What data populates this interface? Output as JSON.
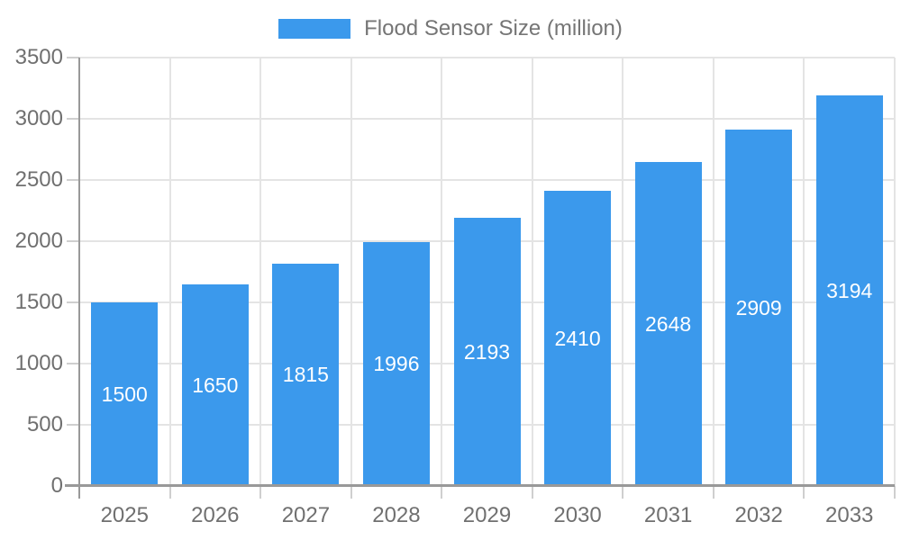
{
  "chart_data": {
    "type": "bar",
    "title": "",
    "legend": "Flood Sensor Size (million)",
    "legend_position": "top",
    "categories": [
      "2025",
      "2026",
      "2027",
      "2028",
      "2029",
      "2030",
      "2031",
      "2032",
      "2033"
    ],
    "values": [
      1500,
      1650,
      1815,
      1996,
      2193,
      2410,
      2648,
      2909,
      3194
    ],
    "bar_value_labels": [
      "1500",
      "1650",
      "1815",
      "1996",
      "2193",
      "2410",
      "2648",
      "2909",
      "3194"
    ],
    "xlabel": "",
    "ylabel": "",
    "ylim": [
      0,
      3500
    ],
    "yticks": [
      0,
      500,
      1000,
      1500,
      2000,
      2500,
      3000,
      3500
    ],
    "grid": true,
    "colors": {
      "bar": "#3B99EC",
      "grid": "#E4E4E4",
      "axis": "#999999",
      "tick": "#CFCFCF",
      "axis_label": "#707070",
      "value_label": "#FFFFFF",
      "background": "#FFFFFF"
    }
  }
}
